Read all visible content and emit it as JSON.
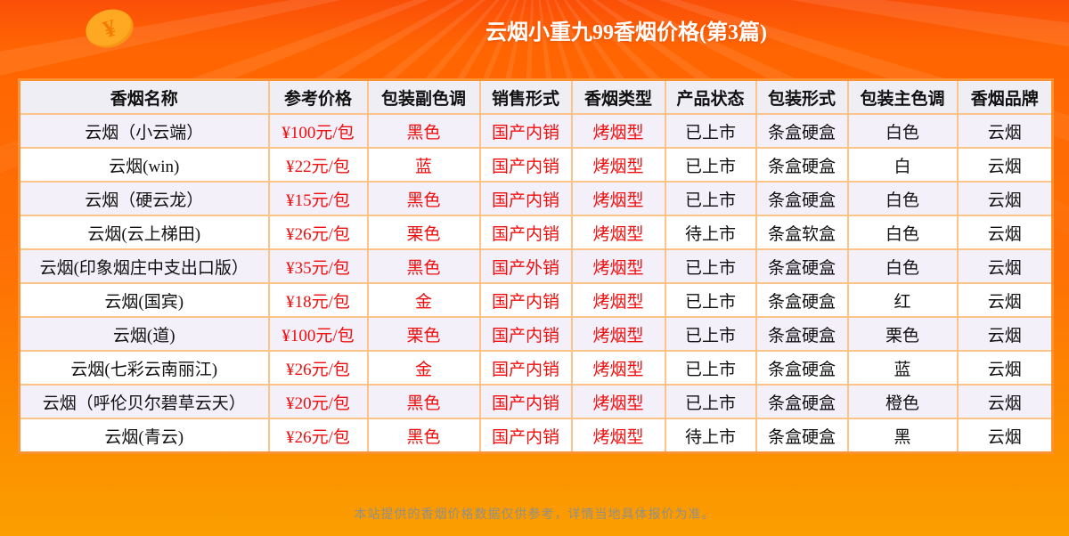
{
  "header": {
    "title": "云烟小重九99香烟价格(第3篇)",
    "coin_symbol": "¥"
  },
  "table": {
    "columns": [
      {
        "key": "name",
        "label": "香烟名称",
        "highlight": false
      },
      {
        "key": "price",
        "label": "参考价格",
        "highlight": true
      },
      {
        "key": "secondary_color",
        "label": "包装副色调",
        "highlight": true
      },
      {
        "key": "sales_form",
        "label": "销售形式",
        "highlight": true
      },
      {
        "key": "type",
        "label": "香烟类型",
        "highlight": true
      },
      {
        "key": "status",
        "label": "产品状态",
        "highlight": false
      },
      {
        "key": "package_form",
        "label": "包装形式",
        "highlight": false
      },
      {
        "key": "main_color",
        "label": "包装主色调",
        "highlight": false
      },
      {
        "key": "brand",
        "label": "香烟品牌",
        "highlight": false
      }
    ],
    "rows": [
      {
        "name": "云烟（小云端）",
        "price": "¥100元/包",
        "secondary_color": "黑色",
        "sales_form": "国产内销",
        "type": "烤烟型",
        "status": "已上市",
        "package_form": "条盒硬盒",
        "main_color": "白色",
        "brand": "云烟"
      },
      {
        "name": "云烟(win)",
        "price": "¥22元/包",
        "secondary_color": "蓝",
        "sales_form": "国产内销",
        "type": "烤烟型",
        "status": "已上市",
        "package_form": "条盒硬盒",
        "main_color": "白",
        "brand": "云烟"
      },
      {
        "name": "云烟（硬云龙）",
        "price": "¥15元/包",
        "secondary_color": "黑色",
        "sales_form": "国产内销",
        "type": "烤烟型",
        "status": "已上市",
        "package_form": "条盒硬盒",
        "main_color": "白色",
        "brand": "云烟"
      },
      {
        "name": "云烟(云上梯田)",
        "price": "¥26元/包",
        "secondary_color": "栗色",
        "sales_form": "国产内销",
        "type": "烤烟型",
        "status": "待上市",
        "package_form": "条盒软盒",
        "main_color": "白色",
        "brand": "云烟"
      },
      {
        "name": "云烟(印象烟庄中支出口版）",
        "price": "¥35元/包",
        "secondary_color": "黑色",
        "sales_form": "国产外销",
        "type": "烤烟型",
        "status": "已上市",
        "package_form": "条盒硬盒",
        "main_color": "白色",
        "brand": "云烟"
      },
      {
        "name": "云烟(国宾)",
        "price": "¥18元/包",
        "secondary_color": "金",
        "sales_form": "国产内销",
        "type": "烤烟型",
        "status": "已上市",
        "package_form": "条盒硬盒",
        "main_color": "红",
        "brand": "云烟"
      },
      {
        "name": "云烟(道)",
        "price": "¥100元/包",
        "secondary_color": "栗色",
        "sales_form": "国产内销",
        "type": "烤烟型",
        "status": "已上市",
        "package_form": "条盒硬盒",
        "main_color": "栗色",
        "brand": "云烟"
      },
      {
        "name": "云烟(七彩云南丽江)",
        "price": "¥26元/包",
        "secondary_color": "金",
        "sales_form": "国产内销",
        "type": "烤烟型",
        "status": "已上市",
        "package_form": "条盒硬盒",
        "main_color": "蓝",
        "brand": "云烟"
      },
      {
        "name": "云烟（呼伦贝尔碧草云天）",
        "price": "¥20元/包",
        "secondary_color": "黑色",
        "sales_form": "国产内销",
        "type": "烤烟型",
        "status": "已上市",
        "package_form": "条盒硬盒",
        "main_color": "橙色",
        "brand": "云烟"
      },
      {
        "name": "云烟(青云)",
        "price": "¥26元/包",
        "secondary_color": "黑色",
        "sales_form": "国产内销",
        "type": "烤烟型",
        "status": "待上市",
        "package_form": "条盒硬盒",
        "main_color": "黑",
        "brand": "云烟"
      }
    ]
  },
  "footer": {
    "note": "本站提供的香烟价格数据仅供参考，详情当地具体报价为准。"
  },
  "colors": {
    "bg-top": "#fa4f08",
    "bg-bottom": "#fb9e00",
    "coin": "#ffa821",
    "frame": "#fb9233",
    "grid": "#fcc489",
    "head-bg": "#efeef5",
    "row-alt": "#f3f0fa",
    "accent-red": "#ee0e0e",
    "note": "#8f9089"
  }
}
